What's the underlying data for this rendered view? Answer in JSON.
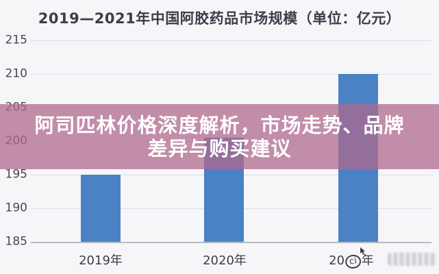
{
  "title": "2019—2021年中国阿胶药品市场规模（单位：亿元）",
  "overlay_banner": {
    "line1": "阿司匹林价格深度解析，市场走势、品牌",
    "line2": "差异与购买建议",
    "background_color": "#af688e",
    "text_color": "#ffffff"
  },
  "chart_data": {
    "type": "bar",
    "title": "2019—2021年中国阿胶药品市场规模（单位：亿元）",
    "unit": "亿元",
    "categories": [
      "2019年",
      "2020年",
      "2021年"
    ],
    "values": [
      195,
      200.5,
      210
    ],
    "ylim": [
      185,
      215
    ],
    "yticks": [
      215,
      210,
      205,
      200,
      195,
      190,
      185
    ],
    "grid": true,
    "legend": "none",
    "bar_color": "#4a82c4",
    "xlabel": "",
    "ylabel": ""
  },
  "x_axis": {
    "tick1": "2019年",
    "tick2": "2020年",
    "tick3_prefix": "20",
    "tick3_circled": "ci",
    "tick3_suffix": "年"
  },
  "colors": {
    "background": "#f6f6f8",
    "bar": "#4a82c4",
    "banner_overlay": "#af688e",
    "title_text": "#3a3e49",
    "axis_text": "#43474f",
    "gridline": "#dcdfe5"
  }
}
